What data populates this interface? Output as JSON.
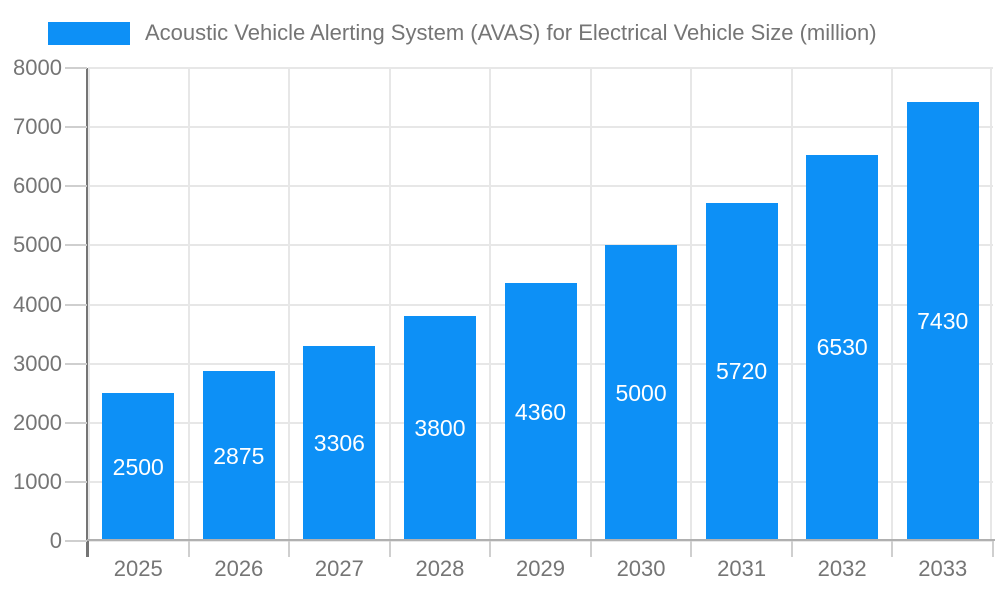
{
  "chart_data": {
    "type": "bar",
    "title": "Acoustic Vehicle Alerting System (AVAS) for Electrical Vehicle Size (million)",
    "series": [
      {
        "name": "Acoustic Vehicle Alerting System (AVAS) for Electrical Vehicle Size (million)",
        "values": [
          2500,
          2875,
          3306,
          3800,
          4360,
          5000,
          5720,
          6530,
          7430
        ]
      }
    ],
    "categories": [
      "2025",
      "2026",
      "2027",
      "2028",
      "2029",
      "2030",
      "2031",
      "2032",
      "2033"
    ],
    "values": [
      2500,
      2875,
      3306,
      3800,
      4360,
      5000,
      5720,
      6530,
      7430
    ],
    "bar_labels": [
      "2500",
      "2875",
      "3306",
      "3800",
      "4360",
      "5000",
      "5720",
      "6530",
      "7430"
    ],
    "xlabel": "",
    "ylabel": "",
    "ylim": [
      0,
      8000
    ],
    "y_ticks": [
      0,
      1000,
      2000,
      3000,
      4000,
      5000,
      6000,
      7000,
      8000
    ],
    "grid": true,
    "legend_position": "top-left",
    "bar_labels_visible": true,
    "colors": {
      "bar": "#0d90f6",
      "bar_label": "#ffffff",
      "axis_text": "#757575",
      "legend_text": "#757575",
      "gridline": "#e7e7e7",
      "y_axis_line": "#757575",
      "x_axis_line": "#b0b0b0",
      "tick": "#cfcfcf",
      "background": "#ffffff"
    }
  }
}
